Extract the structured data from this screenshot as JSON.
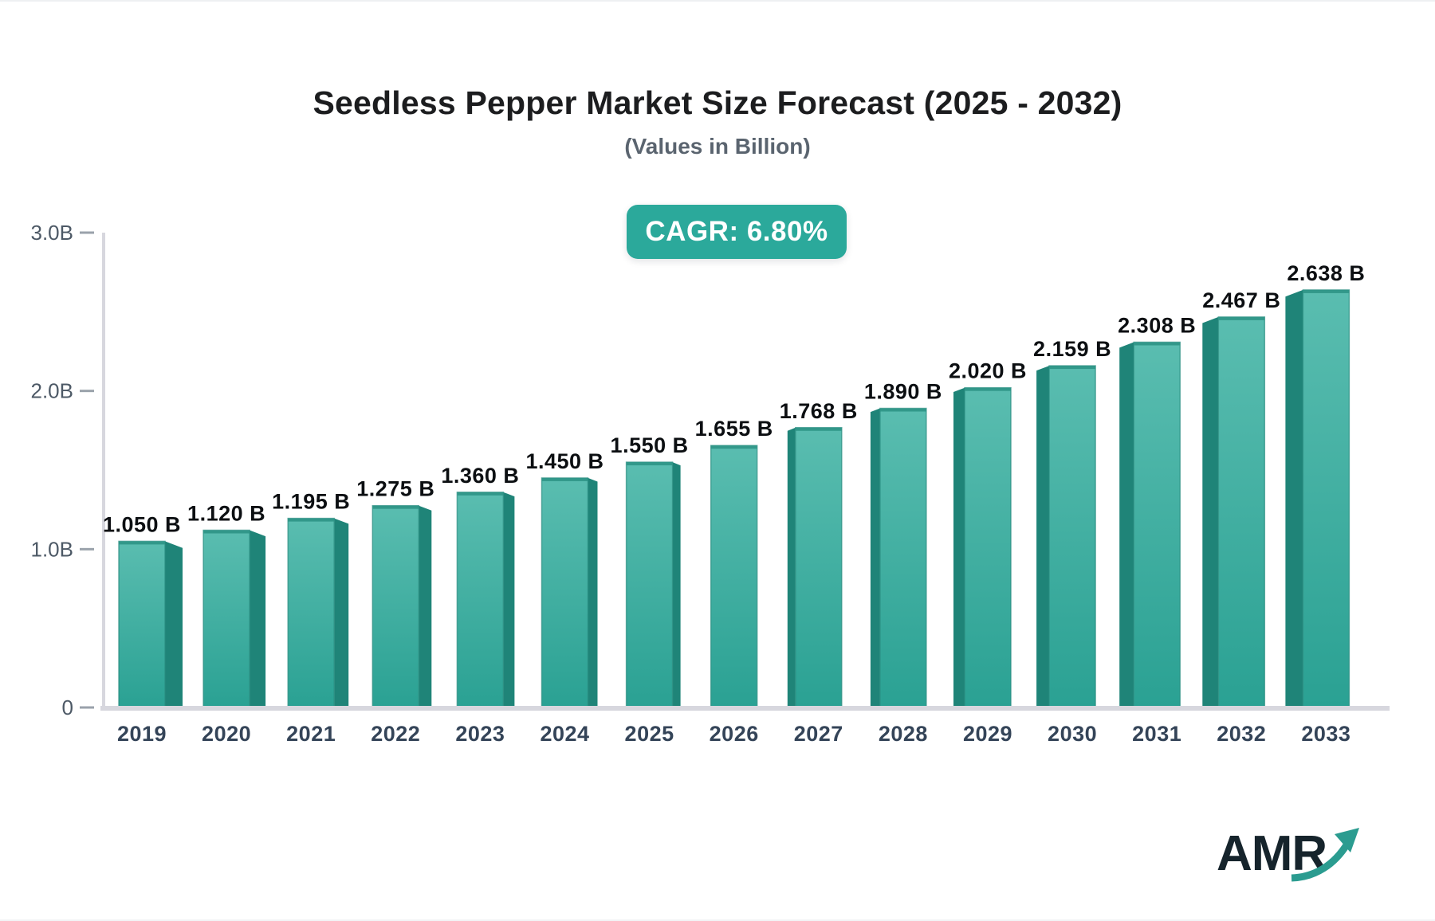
{
  "header": {
    "title": "Seedless Pepper Market Size Forecast (2025 - 2032)",
    "subtitle": "(Values in Billion)"
  },
  "badge": {
    "label": "CAGR: 6.80%",
    "bg_color": "#2ba99b",
    "text_color": "#ffffff"
  },
  "chart_data": {
    "type": "bar",
    "title": "Seedless Pepper Market Size Forecast (2025 - 2032)",
    "subtitle": "(Values in Billion)",
    "unit": "Billion",
    "categories": [
      "2019",
      "2020",
      "2021",
      "2022",
      "2023",
      "2024",
      "2025",
      "2026",
      "2027",
      "2028",
      "2029",
      "2030",
      "2031",
      "2032",
      "2033"
    ],
    "values": [
      1.05,
      1.12,
      1.195,
      1.275,
      1.36,
      1.45,
      1.55,
      1.655,
      1.768,
      1.89,
      2.02,
      2.159,
      2.308,
      2.467,
      2.638
    ],
    "value_labels": [
      "1.050 B",
      "1.120 B",
      "1.195 B",
      "1.275 B",
      "1.360 B",
      "1.450 B",
      "1.550 B",
      "1.655 B",
      "1.768 B",
      "1.890 B",
      "2.020 B",
      "2.159 B",
      "2.308 B",
      "2.467 B",
      "2.638 B"
    ],
    "xlabel": "",
    "ylabel": "",
    "ylim": [
      0,
      3
    ],
    "y_ticks": [
      {
        "label": "3.0B",
        "value": 3.0
      },
      {
        "label": "2.0B",
        "value": 2.0
      },
      {
        "label": "1.0B",
        "value": 1.0
      },
      {
        "label": "0",
        "value": 0
      }
    ],
    "grid": false,
    "legend": false,
    "colors": {
      "bar_front_top": "#5abdb0",
      "bar_front_bottom": "#2aa193",
      "bar_side": "#1f8478",
      "bar_top_edge": "#2e9386",
      "bar_front_stroke": "#2a8d80",
      "axis_line": "#d7d7de",
      "tick": "#9aa2ab",
      "tick_label": "#4d5966",
      "category_label": "#344458",
      "value_label": "#0c0f12"
    }
  },
  "logo": {
    "text": "AMR",
    "text_color": "#16242c",
    "arrow_color": "#2b9c90"
  }
}
